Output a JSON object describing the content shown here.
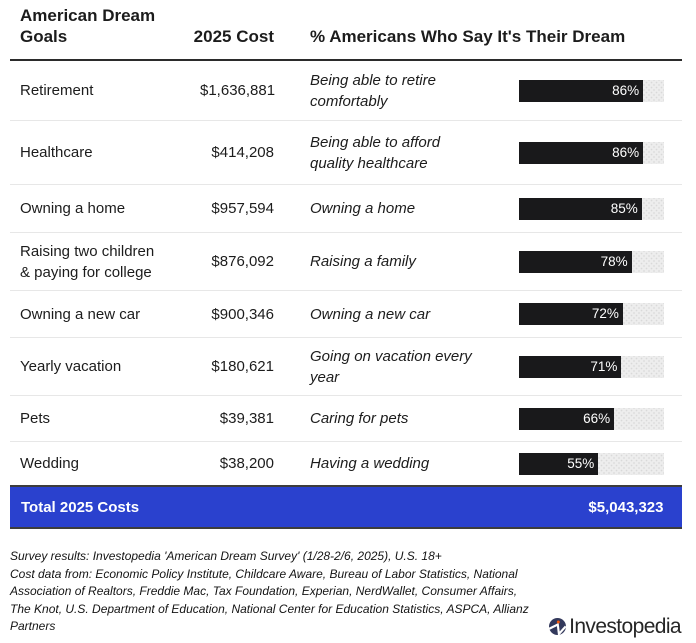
{
  "header": {
    "goals_label": "American Dream\nGoals",
    "cost_label": "2025 Cost",
    "pct_label": "% Americans Who Say It's Their Dream"
  },
  "rows": [
    {
      "goal": "Retirement",
      "cost": "$1,636,881",
      "dream": "Being able to retire\ncomfortably",
      "pct": 86,
      "pct_label": "86%"
    },
    {
      "goal": "Healthcare",
      "cost": "$414,208",
      "dream": "Being able to afford\nquality healthcare",
      "pct": 86,
      "pct_label": "86%"
    },
    {
      "goal": "Owning a home",
      "cost": "$957,594",
      "dream": "Owning a home",
      "pct": 85,
      "pct_label": "85%"
    },
    {
      "goal": "Raising two children\n& paying for college",
      "cost": "$876,092",
      "dream": "Raising a family",
      "pct": 78,
      "pct_label": "78%"
    },
    {
      "goal": "Owning a new car",
      "cost": "$900,346",
      "dream": "Owning a new car",
      "pct": 72,
      "pct_label": "72%"
    },
    {
      "goal": "Yearly vacation",
      "cost": "$180,621",
      "dream": "Going on vacation every\nyear",
      "pct": 71,
      "pct_label": "71%"
    },
    {
      "goal": "Pets",
      "cost": "$39,381",
      "dream": "Caring for pets",
      "pct": 66,
      "pct_label": "66%"
    },
    {
      "goal": "Wedding",
      "cost": "$38,200",
      "dream": "Having a wedding",
      "pct": 55,
      "pct_label": "55%"
    }
  ],
  "total": {
    "label": "Total 2025 Costs",
    "value": "$5,043,323"
  },
  "footer": {
    "lines": [
      "Survey results: Investopedia 'American Dream Survey' (1/28-2/6, 2025), U.S. 18+",
      "Cost data from: Economic Policy Institute, Childcare Aware, Bureau of Labor Statistics, National",
      "Association of Realtors, Freddie Mac, Tax Foundation, Experian, NerdWallet, Consumer Affairs,",
      "The Knot, U.S. Department of Education, National Center for Education Statistics, ASPCA, Allianz",
      "Partners"
    ]
  },
  "logo": {
    "text": "Investopedia"
  },
  "colors": {
    "total_banner_blue": "#2a41ce",
    "bar_fill_black": "#19191b",
    "bar_track_gray": "#ededed",
    "logo_circle_navy": "#33395c",
    "logo_dot_orange": "#f4590f"
  },
  "chart_data": {
    "type": "table",
    "title": "American Dream Goals",
    "columns": [
      "American Dream Goals",
      "2025 Cost",
      "% Americans Who Say It's Their Dream"
    ],
    "categories": [
      "Retirement",
      "Healthcare",
      "Owning a home",
      "Raising two children & paying for college",
      "Owning a new car",
      "Yearly vacation",
      "Pets",
      "Wedding"
    ],
    "costs_2025": [
      1636881,
      414208,
      957594,
      876092,
      900346,
      180621,
      39381,
      38200
    ],
    "dream_descriptions": [
      "Being able to retire comfortably",
      "Being able to afford quality healthcare",
      "Owning a home",
      "Raising a family",
      "Owning a new car",
      "Going on vacation every year",
      "Caring for pets",
      "Having a wedding"
    ],
    "pct_americans": [
      86,
      86,
      85,
      78,
      72,
      71,
      66,
      55
    ],
    "bar_type": "bar",
    "bar_range": [
      0,
      100
    ],
    "total_label": "Total 2025 Costs",
    "total_value": 5043323,
    "source_note": "Survey results: Investopedia 'American Dream Survey' (1/28-2/6, 2025), U.S. 18+ Cost data from: Economic Policy Institute, Childcare Aware, Bureau of Labor Statistics, National Association of Realtors, Freddie Mac, Tax Foundation, Experian, NerdWallet, Consumer Affairs, The Knot, U.S. Department of Education, National Center for Education Statistics, ASPCA, Allianz Partners"
  }
}
